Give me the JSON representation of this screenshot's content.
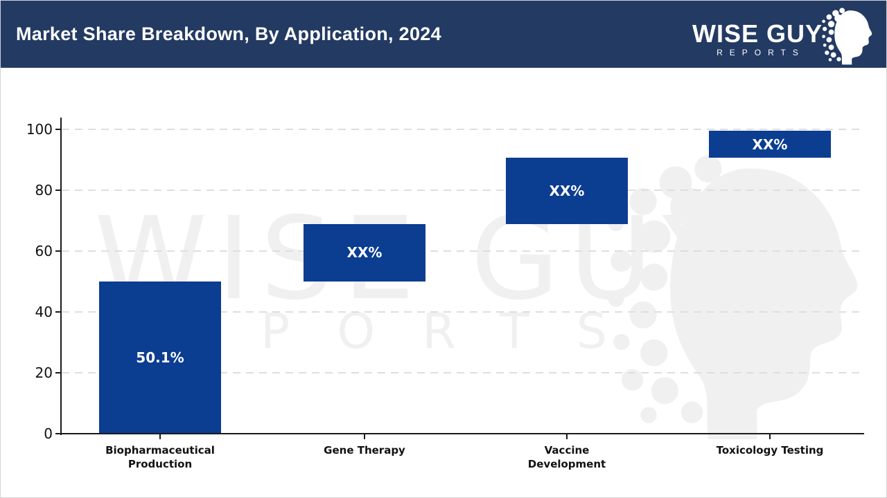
{
  "header": {
    "title": "Market Share Breakdown, By Application, 2024",
    "bg_color": "#233a63",
    "logo": {
      "line1": "WISE GUY",
      "line2": "REPORTS"
    }
  },
  "watermark": {
    "line1": "WISE GUY",
    "line2": "PORTS"
  },
  "chart_data": {
    "type": "bar",
    "subtype": "waterfall",
    "title": "Market Share Breakdown, By Application, 2024",
    "categories": [
      "Biopharmaceutical Production",
      "Gene Therapy",
      "Vaccine Development",
      "Toxicology Testing"
    ],
    "segments": [
      {
        "category": "Biopharmaceutical Production",
        "label_lines": [
          "Biopharmaceutical",
          "Production"
        ],
        "start": 0,
        "end": 50.1,
        "label": "50.1%"
      },
      {
        "category": "Gene Therapy",
        "label_lines": [
          "Gene Therapy"
        ],
        "start": 50.1,
        "end": 68.9,
        "label": "XX%"
      },
      {
        "category": "Vaccine Development",
        "label_lines": [
          "Vaccine",
          "Development"
        ],
        "start": 68.9,
        "end": 90.6,
        "label": "XX%"
      },
      {
        "category": "Toxicology Testing",
        "label_lines": [
          "Toxicology Testing"
        ],
        "start": 90.6,
        "end": 99.5,
        "label": "XX%"
      }
    ],
    "ylim": [
      0,
      100
    ],
    "yticks": [
      0,
      20,
      40,
      60,
      80,
      100
    ],
    "xlabel": "",
    "ylabel": "",
    "grid": "dashed-horizontal",
    "legend": "none",
    "bar_color": "#0b3d91",
    "bar_label_color": "#ffffff",
    "axis_color": "#1a1a1a"
  }
}
